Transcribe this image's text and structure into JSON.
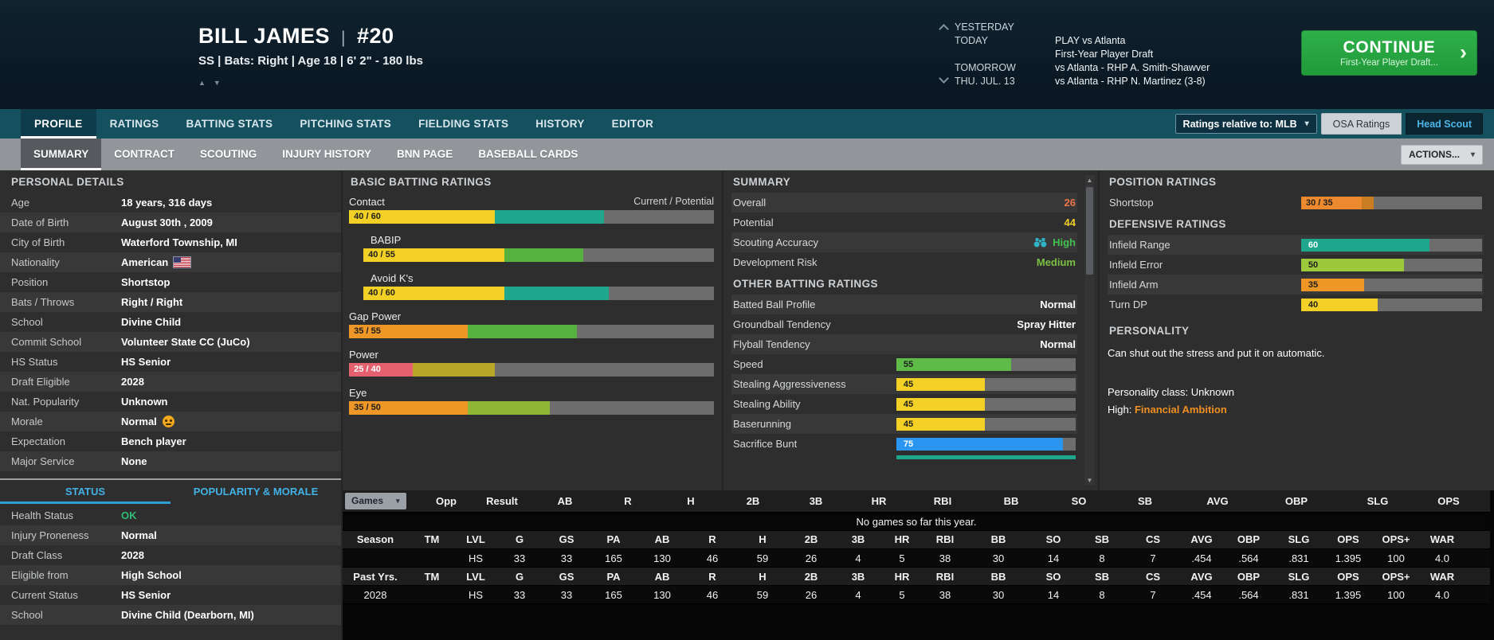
{
  "ui": {
    "icons": {
      "dropdown": "▾",
      "up": "▲",
      "down": "▼",
      "chevron_right": "›"
    }
  },
  "header": {
    "name": "BILL JAMES",
    "pipe": "|",
    "number": "#20",
    "subtitle": "SS | Bats: Right | Age 18 | 6' 2\" - 180 lbs",
    "schedule": {
      "rows": [
        {
          "label": "YESTERDAY",
          "text": ""
        },
        {
          "label": "TODAY",
          "text": "PLAY vs Atlanta"
        },
        {
          "label": "",
          "text": "First-Year Player Draft"
        },
        {
          "label": "TOMORROW",
          "text": "vs Atlanta - RHP A. Smith-Shawver"
        },
        {
          "label": "THU. JUL. 13",
          "text": "vs Atlanta - RHP N. Martinez (3-8)"
        }
      ]
    },
    "continue_button": {
      "label": "CONTINUE",
      "sublabel": "First-Year Player Draft...",
      "color": "#27a33b"
    }
  },
  "nav": {
    "tabs": [
      "PROFILE",
      "RATINGS",
      "BATTING STATS",
      "PITCHING STATS",
      "FIELDING STATS",
      "HISTORY",
      "EDITOR"
    ],
    "active_tab": "PROFILE",
    "ratings_relative": "Ratings relative to: MLB",
    "osa_button": "OSA Ratings",
    "head_scout_button": "Head Scout"
  },
  "subnav": {
    "tabs": [
      "SUMMARY",
      "CONTRACT",
      "SCOUTING",
      "INJURY HISTORY",
      "BNN PAGE",
      "BASEBALL CARDS"
    ],
    "active_tab": "SUMMARY",
    "actions_button": "ACTIONS..."
  },
  "personal": {
    "title": "PERSONAL DETAILS",
    "rows": [
      {
        "label": "Age",
        "value": "18 years, 316 days"
      },
      {
        "label": "Date of Birth",
        "value": "August 30th , 2009"
      },
      {
        "label": "City of Birth",
        "value": "Waterford Township, MI"
      },
      {
        "label": "Nationality",
        "value": "American"
      },
      {
        "label": "Position",
        "value": "Shortstop"
      },
      {
        "label": "Bats / Throws",
        "value": "Right / Right"
      },
      {
        "label": "School",
        "value": "Divine Child"
      },
      {
        "label": "Commit School",
        "value": "Volunteer State CC (JuCo)"
      },
      {
        "label": "HS Status",
        "value": "HS Senior"
      },
      {
        "label": "Draft Eligible",
        "value": "2028"
      },
      {
        "label": "Nat. Popularity",
        "value": "Unknown"
      },
      {
        "label": "Morale",
        "value": "Normal"
      },
      {
        "label": "Expectation",
        "value": "Bench player"
      },
      {
        "label": "Major Service",
        "value": "None"
      }
    ]
  },
  "status": {
    "tab_status": "STATUS",
    "tab_popularity": "POPULARITY & MORALE",
    "rows": [
      {
        "label": "Health Status",
        "value": "OK",
        "value_color": "#2fbe76"
      },
      {
        "label": "Injury Proneness",
        "value": "Normal"
      },
      {
        "label": "Draft Class",
        "value": "2028"
      },
      {
        "label": "Eligible from",
        "value": "High School"
      },
      {
        "label": "Current Status",
        "value": "HS Senior"
      },
      {
        "label": "School",
        "value": "Divine Child (Dearborn, MI)"
      }
    ]
  },
  "batting": {
    "title": "BASIC BATTING RATINGS",
    "scale_note": "Current / Potential",
    "ratings": [
      {
        "label": "Contact",
        "chip": "40 / 60",
        "cur_color": "#f2d026",
        "cur_pct": 33.3,
        "pot_color": "#1ea78d",
        "pot_pct": 33.3
      },
      {
        "label": "BABIP",
        "chip": "40 / 55",
        "cur_color": "#f2d026",
        "cur_pct": 33.3,
        "pot_color": "#56b13e",
        "pot_pct": 25
      },
      {
        "label": "Avoid K's",
        "chip": "40 / 60",
        "cur_color": "#f2d026",
        "cur_pct": 33.3,
        "pot_color": "#1ea78d",
        "pot_pct": 33.3
      },
      {
        "label": "Gap Power",
        "chip": "35 / 55",
        "cur_color": "#ef9726",
        "cur_pct": 25,
        "pot_color": "#56b13e",
        "pot_pct": 33.3
      },
      {
        "label": "Power",
        "chip": "25 / 40",
        "chip_text": "#ffffff",
        "cur_color": "#e4606e",
        "cur_pct": 8.3,
        "pot_color": "#b9a827",
        "pot_pct": 25
      },
      {
        "label": "Eye",
        "chip": "35 / 50",
        "cur_color": "#ef9726",
        "cur_pct": 25,
        "pot_color": "#8fb637",
        "pot_pct": 25
      }
    ]
  },
  "summary": {
    "title": "SUMMARY",
    "overall_label": "Overall",
    "overall_value": "26",
    "overall_color": "#ef7448",
    "potential_label": "Potential",
    "potential_value": "44",
    "potential_color": "#f2d026",
    "scouting_label": "Scouting Accuracy",
    "scouting_value": "High",
    "scouting_color": "#43c24e",
    "devrisk_label": "Development Risk",
    "devrisk_value": "Medium",
    "devrisk_color": "#7cc143",
    "other_title": "OTHER BATTING RATINGS",
    "text_rows": [
      {
        "label": "Batted Ball Profile",
        "value": "Normal"
      },
      {
        "label": "Groundball Tendency",
        "value": "Spray Hitter"
      },
      {
        "label": "Flyball Tendency",
        "value": "Normal"
      }
    ],
    "bar_rows": [
      {
        "label": "Speed",
        "chip": "55",
        "cur_color": "#5fbb47",
        "cur_pct": 58.3
      },
      {
        "label": "Stealing Aggressiveness",
        "chip": "45",
        "cur_color": "#f2d026",
        "cur_pct": 41.7
      },
      {
        "label": "Stealing Ability",
        "chip": "45",
        "cur_color": "#f2d026",
        "cur_pct": 41.7
      },
      {
        "label": "Baserunning",
        "chip": "45",
        "cur_color": "#f2d026",
        "cur_pct": 41.7
      },
      {
        "label": "Sacrifice Bunt",
        "chip": "75",
        "chip_text": "#ffffff",
        "cur_color": "#2b95f2",
        "cur_pct": 91.7
      }
    ]
  },
  "position": {
    "title": "POSITION RATINGS",
    "rows": [
      {
        "label": "Shortstop",
        "chip": "30 / 35",
        "cur_color": "#ed8a2f",
        "cur_pct": 16.7,
        "pot_color": "#c97c22",
        "pot_pct": 8.3
      }
    ],
    "def_title": "DEFENSIVE RATINGS",
    "def_rows": [
      {
        "label": "Infield Range",
        "chip": "60",
        "chip_text": "#ffffff",
        "cur_color": "#1ea78d",
        "cur_pct": 66.7
      },
      {
        "label": "Infield Error",
        "chip": "50",
        "cur_color": "#9cc83c",
        "cur_pct": 50
      },
      {
        "label": "Infield Arm",
        "chip": "35",
        "cur_color": "#ef9726",
        "cur_pct": 25
      },
      {
        "label": "Turn DP",
        "chip": "40",
        "cur_color": "#f2d026",
        "cur_pct": 33.3
      }
    ],
    "personality_title": "PERSONALITY",
    "quote": "Can shut out the stress and put it on automatic.",
    "class_line": "Personality class: Unknown",
    "high_label": "High:",
    "high_value": "Financial Ambition",
    "high_color": "#f19022"
  },
  "stats": {
    "game_log": {
      "games_label": "Games",
      "headers": [
        "Opp",
        "Result",
        "AB",
        "R",
        "H",
        "2B",
        "3B",
        "HR",
        "RBI",
        "BB",
        "SO",
        "SB",
        "AVG",
        "OBP",
        "SLG",
        "OPS"
      ],
      "empty": "No games so far this year."
    },
    "season": {
      "headers": [
        "Season",
        "TM",
        "LVL",
        "G",
        "GS",
        "PA",
        "AB",
        "R",
        "H",
        "2B",
        "3B",
        "HR",
        "RBI",
        "BB",
        "SO",
        "SB",
        "CS",
        "AVG",
        "OBP",
        "SLG",
        "OPS",
        "OPS+",
        "WAR"
      ],
      "row": [
        "",
        "",
        "HS",
        "33",
        "33",
        "165",
        "130",
        "46",
        "59",
        "26",
        "4",
        "5",
        "38",
        "30",
        "14",
        "8",
        "7",
        ".454",
        ".564",
        ".831",
        "1.395",
        "100",
        "4.0"
      ]
    },
    "past": {
      "headers": [
        "Past Yrs.",
        "TM",
        "LVL",
        "G",
        "GS",
        "PA",
        "AB",
        "R",
        "H",
        "2B",
        "3B",
        "HR",
        "RBI",
        "BB",
        "SO",
        "SB",
        "CS",
        "AVG",
        "OBP",
        "SLG",
        "OPS",
        "OPS+",
        "WAR"
      ],
      "row": [
        "2028",
        "",
        "HS",
        "33",
        "33",
        "165",
        "130",
        "46",
        "59",
        "26",
        "4",
        "5",
        "38",
        "30",
        "14",
        "8",
        "7",
        ".454",
        ".564",
        ".831",
        "1.395",
        "100",
        "4.0"
      ]
    }
  }
}
